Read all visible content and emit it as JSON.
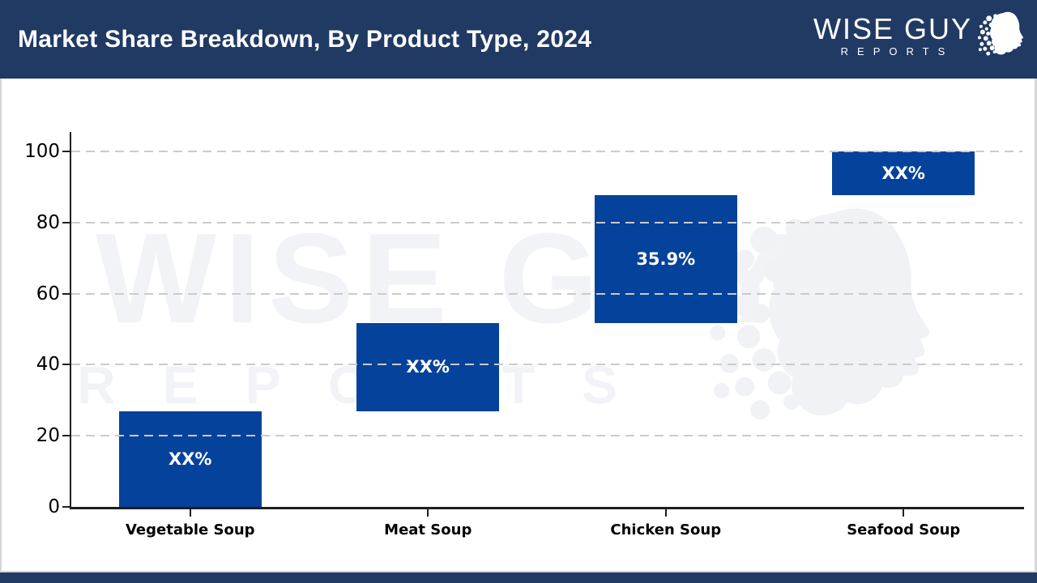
{
  "header": {
    "title": "Market Share Breakdown, By Product Type, 2024",
    "logo": {
      "name": "WISE GUY",
      "tagline": "REPORTS"
    }
  },
  "watermark": {
    "line1": "WISE GUY",
    "line2": "REPORTS"
  },
  "colors": {
    "header_bg": "#203a64",
    "footer_bg": "#203a64",
    "bar": "#05429b",
    "grid": "#cbcbcb",
    "axis": "#1f1f1f",
    "watermark": "#f2f3f6",
    "bar_label_text": "#ffffff"
  },
  "chart_data": {
    "type": "bar",
    "subtype": "floating-waterfall",
    "title": "Market Share Breakdown, By Product Type, 2024",
    "categories": [
      "Vegetable Soup",
      "Meat Soup",
      "Chicken Soup",
      "Seafood Soup"
    ],
    "segments": [
      {
        "category": "Vegetable Soup",
        "start": 0,
        "end": 26.9,
        "label": "XX%"
      },
      {
        "category": "Meat Soup",
        "start": 26.9,
        "end": 51.7,
        "label": "XX%"
      },
      {
        "category": "Chicken Soup",
        "start": 51.7,
        "end": 87.6,
        "label": "35.9%"
      },
      {
        "category": "Seafood Soup",
        "start": 87.6,
        "end": 100,
        "label": "XX%"
      }
    ],
    "ylim": [
      0,
      100
    ],
    "yticks": [
      0,
      20,
      40,
      60,
      80,
      100
    ],
    "xlabel": "",
    "ylabel": "",
    "grid": "dashed-horizontal-over-bars",
    "legend": "none",
    "bar_color": "#05429b"
  }
}
